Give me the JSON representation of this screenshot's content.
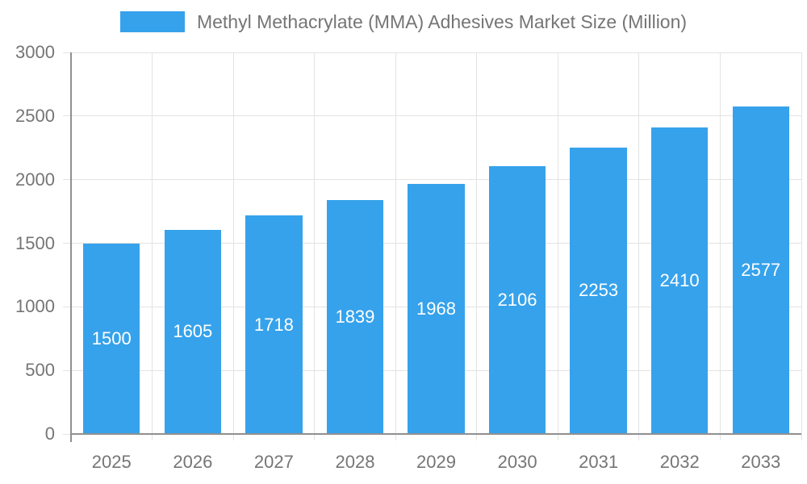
{
  "legend": {
    "label": "Methyl Methacrylate (MMA) Adhesives Market Size (Million)"
  },
  "chart_data": {
    "type": "bar",
    "title": "Methyl Methacrylate (MMA) Adhesives Market Size (Million)",
    "series_name": "Methyl Methacrylate (MMA) Adhesives Market Size (Million)",
    "categories": [
      "2025",
      "2026",
      "2027",
      "2028",
      "2029",
      "2030",
      "2031",
      "2032",
      "2033"
    ],
    "values": [
      1500,
      1605,
      1718,
      1839,
      1968,
      2106,
      2253,
      2410,
      2577
    ],
    "bar_labels_visible": true,
    "xlabel": "",
    "ylabel": "",
    "ylim": [
      0,
      3000
    ],
    "yticks": [
      0,
      500,
      1000,
      1500,
      2000,
      2500,
      3000
    ],
    "grid": true,
    "legend_position": "top",
    "bar_width_fraction": 0.7
  },
  "colors": {
    "bar": "#36A2EB",
    "bar_label_text": "#FFFFFF",
    "axis_text": "#757575",
    "grid_line": "#E3E3E3",
    "axis_line": "#909090",
    "background": "#FFFFFF"
  }
}
